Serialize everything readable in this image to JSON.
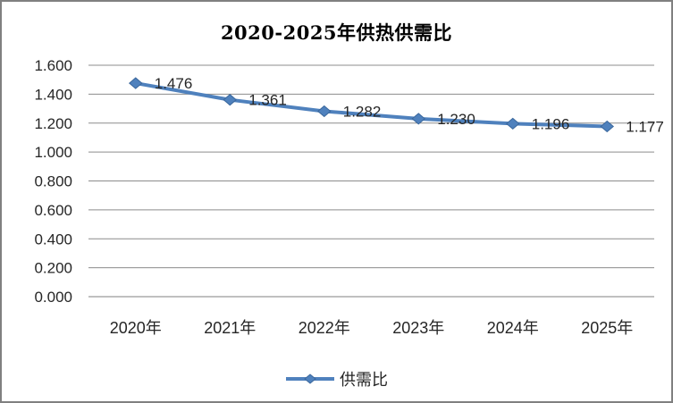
{
  "chart": {
    "title": "2020-2025年供热供需比",
    "legend": {
      "series_label": "供需比"
    }
  },
  "chart_data": {
    "type": "line",
    "title": "2020-2025年供热供需比",
    "categories": [
      "2020年",
      "2021年",
      "2022年",
      "2023年",
      "2024年",
      "2025年"
    ],
    "series": [
      {
        "name": "供需比",
        "values": [
          1.476,
          1.361,
          1.282,
          1.23,
          1.196,
          1.177
        ]
      }
    ],
    "data_labels": [
      "1.476",
      "1.361",
      "1.282",
      "1.230",
      "1.196",
      "1.177"
    ],
    "xlabel": "",
    "ylabel": "",
    "ylim": [
      0,
      1.6
    ],
    "y_ticks": [
      "0.000",
      "0.200",
      "0.400",
      "0.600",
      "0.800",
      "1.000",
      "1.200",
      "1.400",
      "1.600"
    ],
    "grid": true,
    "legend_position": "bottom",
    "marker": "diamond",
    "colors": {
      "series_line": "#4F81BD",
      "marker_fill": "#4F81BD",
      "marker_edge": "#3A679C",
      "gridline": "#8C8C8C",
      "axis_line": "#808080",
      "tick_text": "#262626",
      "title_text": "#000000",
      "frame_border": "#808080",
      "background": "#FFFFFF"
    }
  }
}
